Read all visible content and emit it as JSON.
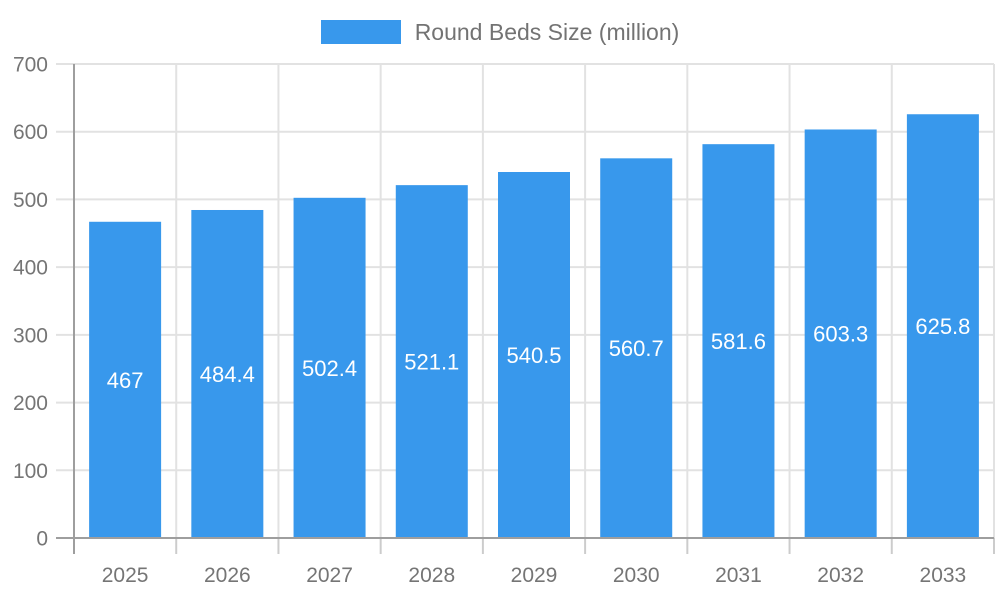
{
  "page": {
    "background": "#ffffff"
  },
  "chart_data": {
    "type": "bar",
    "title": "",
    "legend_label": "Round Beds Size (million)",
    "legend_position": "top",
    "categories": [
      "2025",
      "2026",
      "2027",
      "2028",
      "2029",
      "2030",
      "2031",
      "2032",
      "2033"
    ],
    "values": [
      467,
      484.4,
      502.4,
      521.1,
      540.5,
      560.7,
      581.6,
      603.3,
      625.8
    ],
    "value_labels": [
      "467",
      "484.4",
      "502.4",
      "521.1",
      "540.5",
      "560.7",
      "581.6",
      "603.3",
      "625.8"
    ],
    "xlabel": "",
    "ylabel": "",
    "ylim": [
      0,
      700
    ],
    "yticks": [
      0,
      100,
      200,
      300,
      400,
      500,
      600,
      700
    ],
    "grid": true,
    "colors": {
      "bar": "#3898ec",
      "grid": "#e2e2e2",
      "axis": "#9e9e9e",
      "tick": "#cccccc",
      "axis_text": "#757575",
      "legend_text": "#737373",
      "value_label": "#ffffff"
    }
  }
}
